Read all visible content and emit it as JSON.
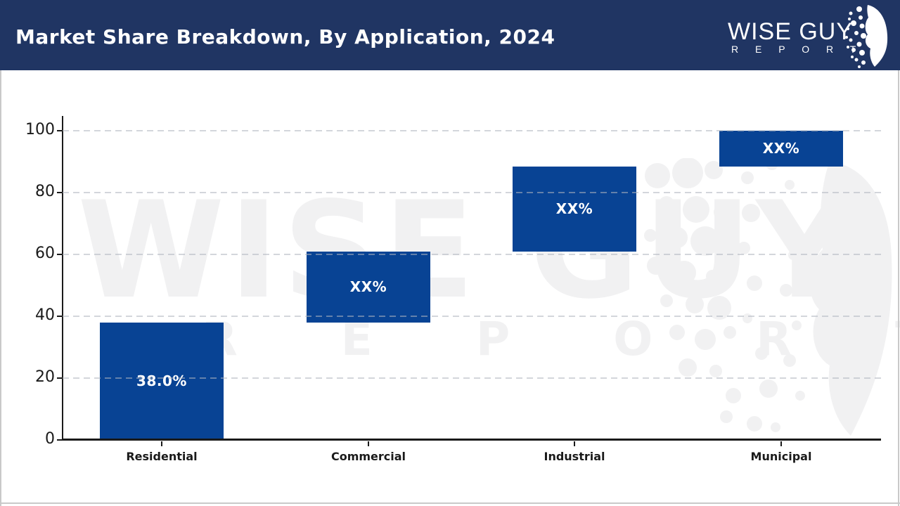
{
  "header": {
    "title": "Market Share Breakdown, By Application, 2024",
    "logo": {
      "line1": "WISE GUY",
      "line2": "R E P O R T S"
    }
  },
  "watermark": {
    "line1": "WISE GUY",
    "line2": "R E P O R T S"
  },
  "colors": {
    "header_bg": "#203563",
    "bar": "#084394",
    "bar_label": "#ffffff",
    "axis": "#1a1a1a",
    "gridline_over_white": "#d9d9d9",
    "watermark": "#f1f1f2",
    "frame_border": "#c9c9c9",
    "title_text": "#ffffff"
  },
  "chart_data": {
    "type": "bar",
    "subtype": "waterfall",
    "title": "Market Share Breakdown, By Application, 2024",
    "categories": [
      "Residential",
      "Commercial",
      "Industrial",
      "Municipal"
    ],
    "segments": [
      {
        "category": "Residential",
        "start": 0,
        "end": 38,
        "label": "38.0%"
      },
      {
        "category": "Commercial",
        "start": 38,
        "end": 61,
        "label": "XX%"
      },
      {
        "category": "Industrial",
        "start": 61,
        "end": 88.5,
        "label": "XX%"
      },
      {
        "category": "Municipal",
        "start": 88.5,
        "end": 100,
        "label": "XX%"
      }
    ],
    "xlabel": "",
    "ylabel": "",
    "ylim": [
      0,
      105
    ],
    "yticks": [
      0,
      20,
      40,
      60,
      80,
      100
    ],
    "grid": "horizontal-dashed",
    "legend": null
  }
}
